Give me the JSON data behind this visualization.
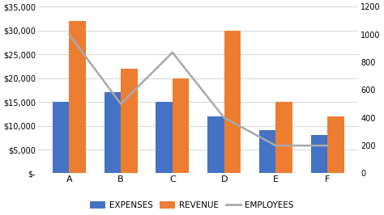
{
  "categories": [
    "A",
    "B",
    "C",
    "D",
    "E",
    "F"
  ],
  "expenses": [
    15000,
    17000,
    15000,
    12000,
    9000,
    8000
  ],
  "revenue": [
    32000,
    22000,
    20000,
    30000,
    15000,
    12000
  ],
  "employees": [
    1000,
    500,
    870,
    400,
    200,
    200
  ],
  "expenses_color": "#4472C4",
  "revenue_color": "#ED7D31",
  "employees_color": "#A9A9A9",
  "ylim_left": [
    0,
    35000
  ],
  "ylim_right": [
    0,
    1200
  ],
  "yticks_left": [
    0,
    5000,
    10000,
    15000,
    20000,
    25000,
    30000,
    35000
  ],
  "yticks_right": [
    0,
    200,
    400,
    600,
    800,
    1000,
    1200
  ],
  "bar_width": 0.32,
  "legend_labels": [
    "EXPENSES",
    "REVENUE",
    "EMPLOYEES"
  ],
  "background_color": "#ffffff",
  "grid_color": "#d9d9d9",
  "figsize": [
    4.74,
    2.66
  ],
  "dpi": 100,
  "tick_label_fontsize": 7,
  "legend_fontsize": 7.5
}
